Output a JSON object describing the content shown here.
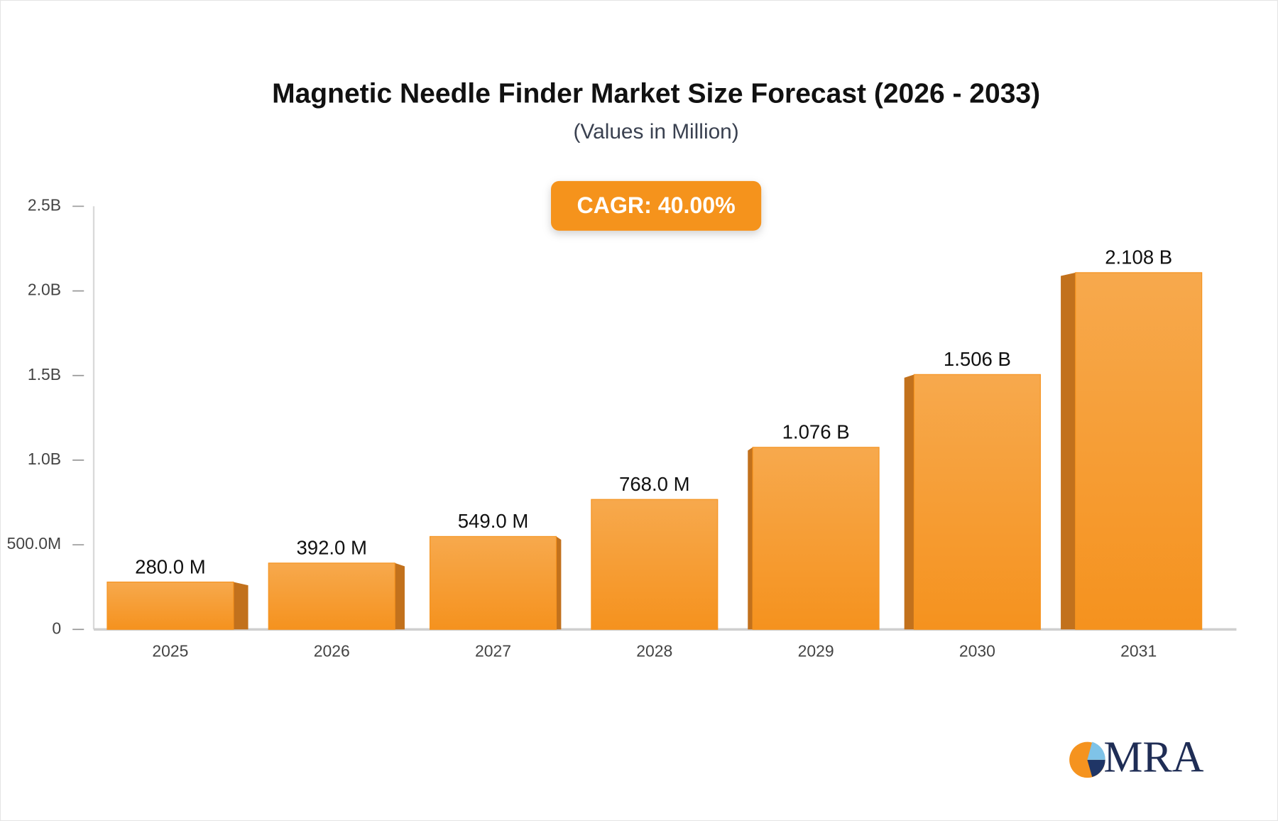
{
  "chart_data": {
    "type": "bar3d",
    "title": "Magnetic Needle Finder Market Size Forecast (2026 - 2033)",
    "subtitle": "(Values in Million)",
    "annotation": "CAGR: 40.00%",
    "categories": [
      "2025",
      "2026",
      "2027",
      "2028",
      "2029",
      "2030",
      "2031"
    ],
    "values": [
      280,
      392,
      549,
      768,
      1076,
      1506,
      2108
    ],
    "value_labels": [
      "280.0 M",
      "392.0 M",
      "549.0 M",
      "768.0 M",
      "1.076 B",
      "1.506 B",
      "2.108 B"
    ],
    "color": "#f5931f",
    "ylim": [
      0,
      2500
    ],
    "yticks": [
      0,
      {
        "value": 500,
        "label": "500.0M"
      },
      {
        "value": 1000,
        "label": "1.0B"
      },
      {
        "value": 1500,
        "label": "1.5B"
      },
      {
        "value": 2000,
        "label": "2.0B"
      },
      {
        "value": 2500,
        "label": "2.5B"
      }
    ],
    "grid": false
  },
  "logo_text": "MRA"
}
